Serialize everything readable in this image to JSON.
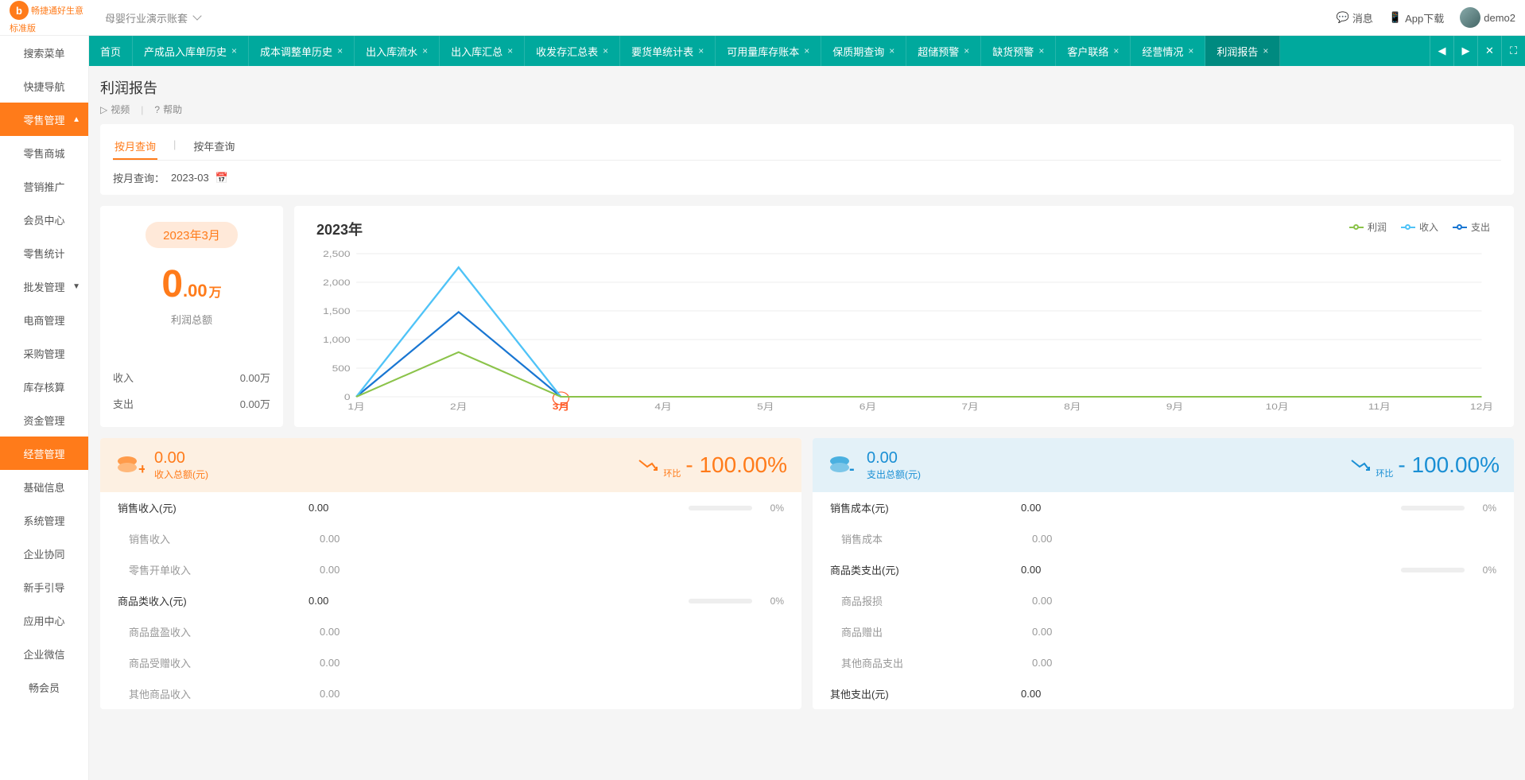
{
  "topbar": {
    "logo_text": "畅捷通好生意",
    "edition": "标准版",
    "account_name": "母婴行业演示账套",
    "messages": "消息",
    "app_download": "App下载",
    "user": "demo2"
  },
  "sidebar": {
    "items": [
      {
        "label": "搜索菜单",
        "name": "search-menu"
      },
      {
        "label": "快捷导航",
        "name": "quick-nav"
      },
      {
        "label": "零售管理",
        "name": "retail-mgmt",
        "active_orange": true,
        "caret": "▲"
      },
      {
        "label": "零售商城",
        "name": "retail-mall"
      },
      {
        "label": "营销推广",
        "name": "marketing"
      },
      {
        "label": "会员中心",
        "name": "member-center"
      },
      {
        "label": "零售统计",
        "name": "retail-stats"
      },
      {
        "label": "批发管理",
        "name": "wholesale",
        "caret": "▼"
      },
      {
        "label": "电商管理",
        "name": "ecommerce"
      },
      {
        "label": "采购管理",
        "name": "purchase"
      },
      {
        "label": "库存核算",
        "name": "inventory-acct"
      },
      {
        "label": "资金管理",
        "name": "funds"
      },
      {
        "label": "经营管理",
        "name": "biz-mgmt",
        "active_orange": true
      },
      {
        "label": "基础信息",
        "name": "basic-info"
      },
      {
        "label": "系统管理",
        "name": "system"
      },
      {
        "label": "企业协同",
        "name": "enterprise-collab"
      },
      {
        "label": "新手引导",
        "name": "newbie-guide"
      },
      {
        "label": "应用中心",
        "name": "app-center"
      },
      {
        "label": "企业微信",
        "name": "wechat-work"
      },
      {
        "label": "畅会员",
        "name": "chang-member"
      }
    ]
  },
  "tabs": {
    "items": [
      {
        "label": "首页",
        "closable": false
      },
      {
        "label": "产成品入库单历史",
        "closable": true
      },
      {
        "label": "成本调整单历史",
        "closable": true
      },
      {
        "label": "出入库流水",
        "closable": true
      },
      {
        "label": "出入库汇总",
        "closable": true
      },
      {
        "label": "收发存汇总表",
        "closable": true
      },
      {
        "label": "要货单统计表",
        "closable": true
      },
      {
        "label": "可用量库存账本",
        "closable": true
      },
      {
        "label": "保质期查询",
        "closable": true
      },
      {
        "label": "超储预警",
        "closable": true
      },
      {
        "label": "缺货预警",
        "closable": true
      },
      {
        "label": "客户联络",
        "closable": true
      },
      {
        "label": "经营情况",
        "closable": true
      },
      {
        "label": "利润报告",
        "closable": true,
        "active": true
      }
    ]
  },
  "page": {
    "title": "利润报告",
    "video_link": "视频",
    "help_link": "帮助",
    "query_tab_month": "按月查询",
    "query_tab_year": "按年查询",
    "query_label": "按月查询：",
    "query_value": "2023-03"
  },
  "summary": {
    "period": "2023年3月",
    "profit_int": "0",
    "profit_dec": ".00",
    "profit_unit": "万",
    "profit_label": "利润总额",
    "income_label": "收入",
    "income_value": "0.00万",
    "expense_label": "支出",
    "expense_value": "0.00万"
  },
  "chart": {
    "title": "2023年",
    "legend": {
      "profit": "利润",
      "income": "收入",
      "expense": "支出"
    },
    "colors": {
      "profit": "#8bc34a",
      "income": "#4fc3f7",
      "expense": "#1976d2",
      "grid": "#eeeeee",
      "axis": "#999999",
      "highlight": "#ff5722"
    },
    "y_ticks": [
      "0",
      "500",
      "1,000",
      "1,500",
      "2,000",
      "2,500"
    ],
    "y_max": 2500,
    "x_labels": [
      "1月",
      "2月",
      "3月",
      "4月",
      "5月",
      "6月",
      "7月",
      "8月",
      "9月",
      "10月",
      "11月",
      "12月"
    ],
    "highlight_index": 2,
    "series": {
      "profit": [
        0,
        780,
        0,
        0,
        0,
        0,
        0,
        0,
        0,
        0,
        0,
        0
      ],
      "income": [
        0,
        2260,
        0,
        0,
        0,
        0,
        0,
        0,
        0,
        0,
        0,
        0
      ],
      "expense": [
        0,
        1480,
        0,
        0,
        0,
        0,
        0,
        0,
        0,
        0,
        0,
        0
      ]
    }
  },
  "income_card": {
    "amount": "0.00",
    "sublabel": "收入总额(元)",
    "ring_label": "环比",
    "change": "- 100.00%",
    "color": "#ff7b1a",
    "rows": [
      {
        "label": "销售收入(元)",
        "value": "0.00",
        "pct": "0%",
        "level": 0
      },
      {
        "label": "销售收入",
        "value": "0.00",
        "level": 1
      },
      {
        "label": "零售开单收入",
        "value": "0.00",
        "level": 1
      },
      {
        "label": "商品类收入(元)",
        "value": "0.00",
        "pct": "0%",
        "level": 0
      },
      {
        "label": "商品盘盈收入",
        "value": "0.00",
        "level": 1
      },
      {
        "label": "商品受赠收入",
        "value": "0.00",
        "level": 1
      },
      {
        "label": "其他商品收入",
        "value": "0.00",
        "level": 1
      }
    ]
  },
  "expense_card": {
    "amount": "0.00",
    "sublabel": "支出总额(元)",
    "ring_label": "环比",
    "change": "- 100.00%",
    "color": "#1a8fd4",
    "rows": [
      {
        "label": "销售成本(元)",
        "value": "0.00",
        "pct": "0%",
        "level": 0
      },
      {
        "label": "销售成本",
        "value": "0.00",
        "level": 1
      },
      {
        "label": "商品类支出(元)",
        "value": "0.00",
        "pct": "0%",
        "level": 0
      },
      {
        "label": "商品报损",
        "value": "0.00",
        "level": 1
      },
      {
        "label": "商品赠出",
        "value": "0.00",
        "level": 1
      },
      {
        "label": "其他商品支出",
        "value": "0.00",
        "level": 1
      },
      {
        "label": "其他支出(元)",
        "value": "0.00",
        "level": 0
      }
    ]
  }
}
